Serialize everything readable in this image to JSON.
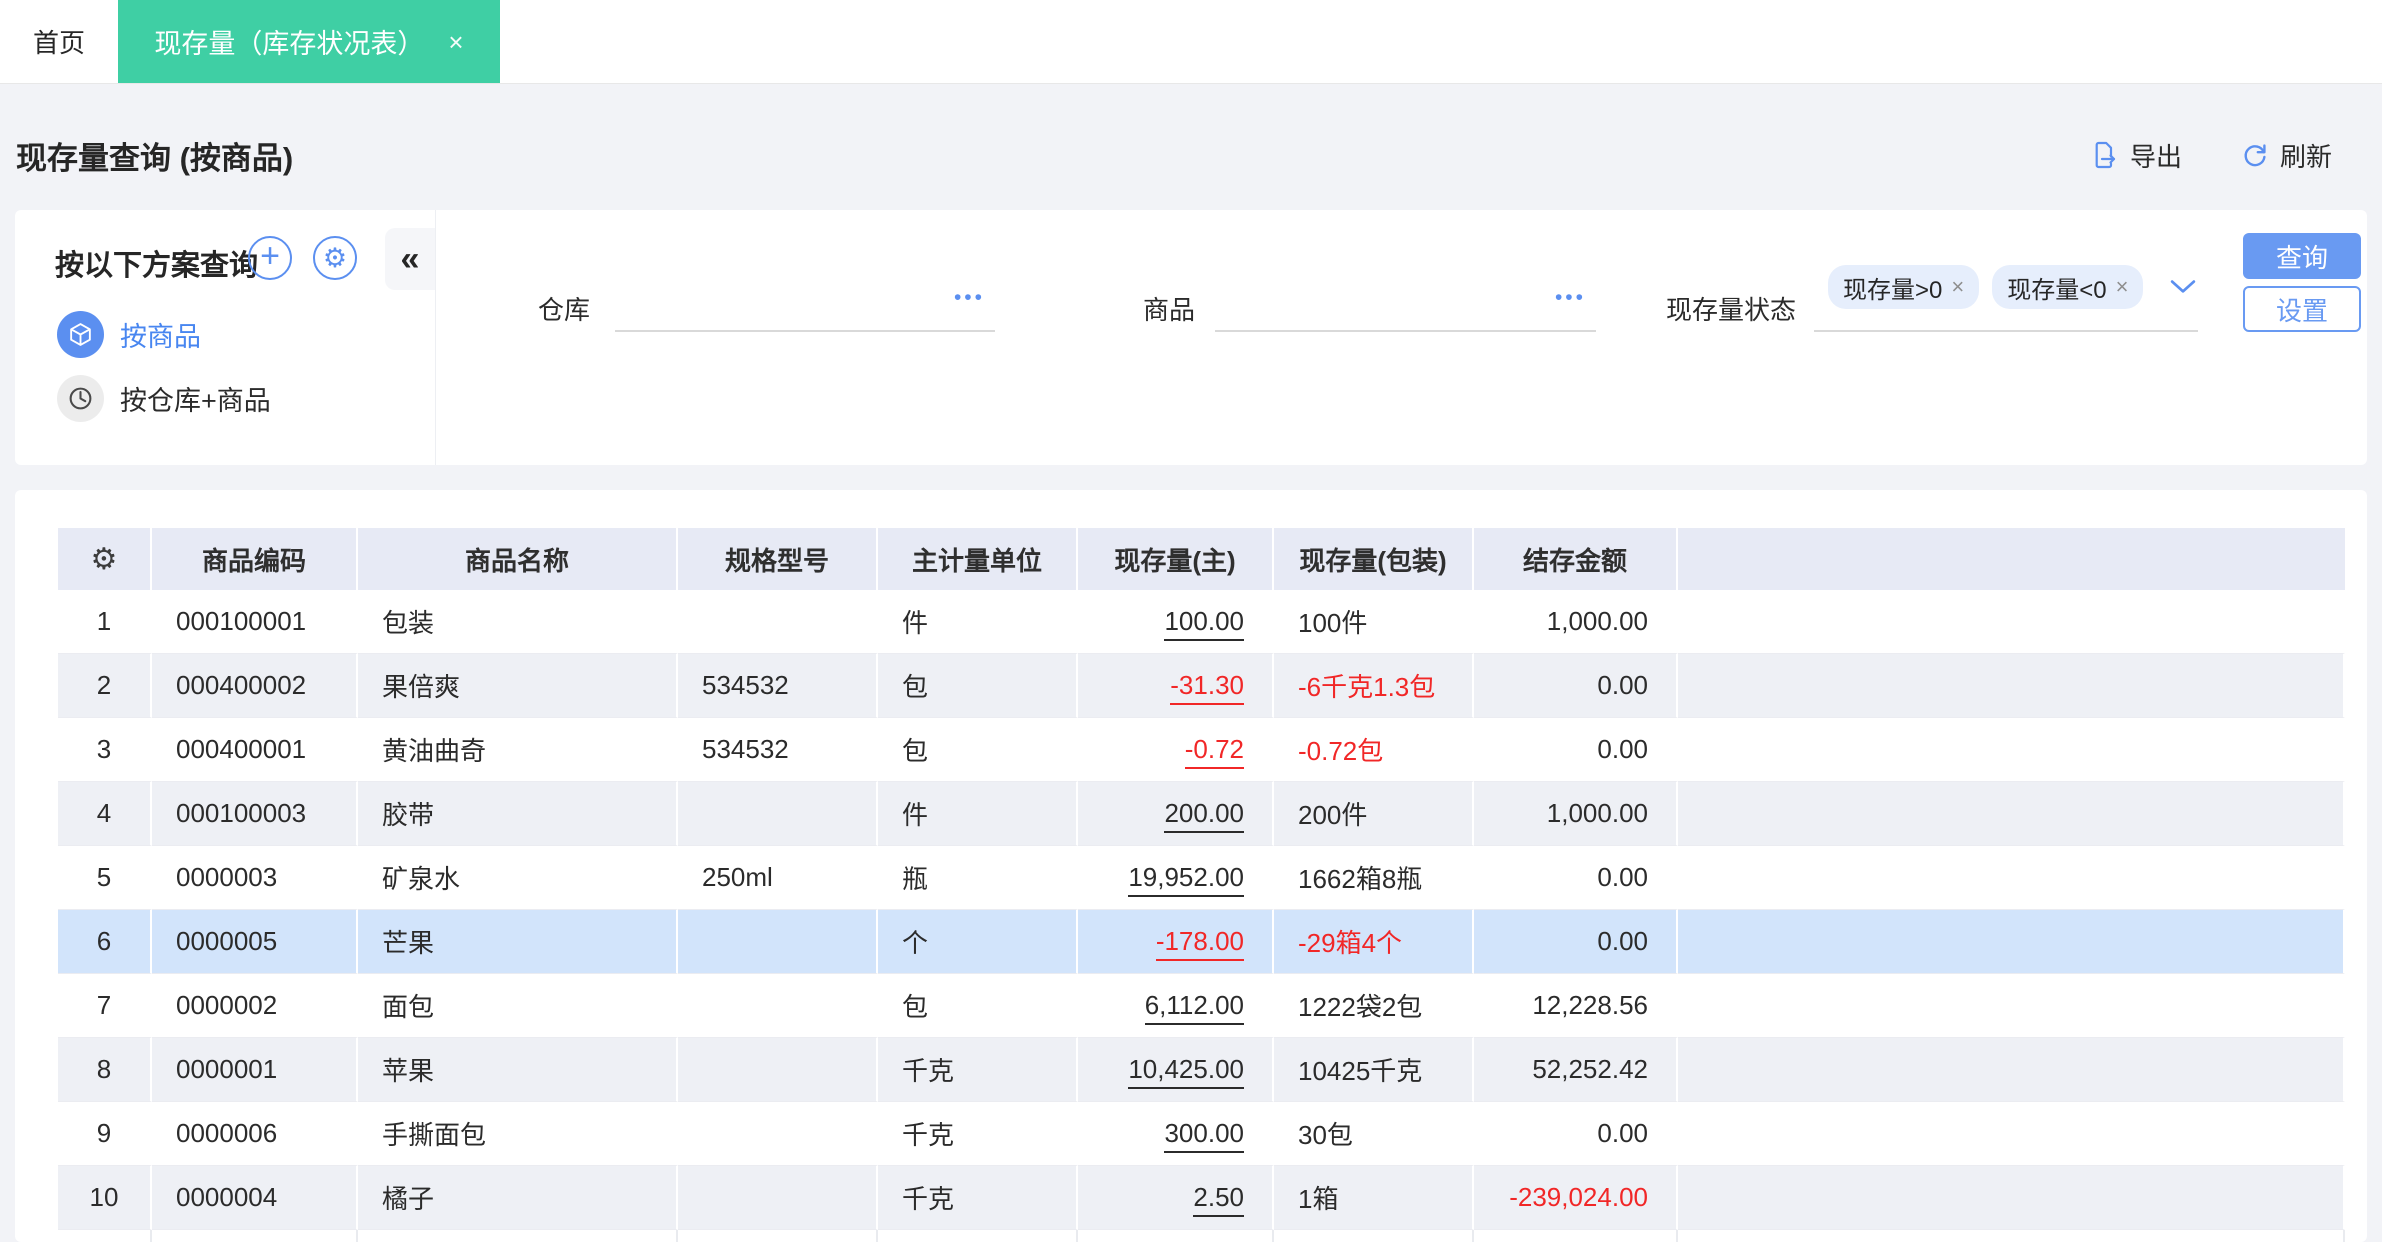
{
  "tabs": {
    "home": "首页",
    "active_label": "现存量（库存状况表）"
  },
  "header": {
    "title": "现存量查询 (按商品)",
    "export_label": "导出",
    "refresh_label": "刷新"
  },
  "scheme_panel": {
    "title": "按以下方案查询",
    "items": [
      {
        "label": "按商品",
        "active": true
      },
      {
        "label": "按仓库+商品",
        "active": false
      }
    ]
  },
  "filters": {
    "warehouse_label": "仓库",
    "product_label": "商品",
    "status_label": "现存量状态",
    "status_tags": [
      {
        "text": "现存量>0"
      },
      {
        "text": "现存量<0"
      }
    ],
    "query_button": "查询",
    "settings_button": "设置"
  },
  "icons": {
    "close": "×",
    "plus": "+",
    "gear": "⚙",
    "collapse": "«",
    "ellipsis": "•••"
  },
  "table": {
    "columns": [
      "商品编码",
      "商品名称",
      "规格型号",
      "主计量单位",
      "现存量(主)",
      "现存量(包装)",
      "结存金额"
    ],
    "selected_row_number": 6,
    "rows": [
      {
        "no": "1",
        "code": "000100001",
        "name": "包装",
        "spec": "",
        "unit": "件",
        "qty_main": "100.00",
        "qty_pkg": "100件",
        "amount": "1,000.00"
      },
      {
        "no": "2",
        "code": "000400002",
        "name": "果倍爽",
        "spec": "534532",
        "unit": "包",
        "qty_main": "-31.30",
        "qty_pkg": "-6千克1.3包",
        "amount": "0.00"
      },
      {
        "no": "3",
        "code": "000400001",
        "name": "黄油曲奇",
        "spec": "534532",
        "unit": "包",
        "qty_main": "-0.72",
        "qty_pkg": "-0.72包",
        "amount": "0.00"
      },
      {
        "no": "4",
        "code": "000100003",
        "name": "胶带",
        "spec": "",
        "unit": "件",
        "qty_main": "200.00",
        "qty_pkg": "200件",
        "amount": "1,000.00"
      },
      {
        "no": "5",
        "code": "0000003",
        "name": "矿泉水",
        "spec": "250ml",
        "unit": "瓶",
        "qty_main": "19,952.00",
        "qty_pkg": "1662箱8瓶",
        "amount": "0.00"
      },
      {
        "no": "6",
        "code": "0000005",
        "name": "芒果",
        "spec": "",
        "unit": "个",
        "qty_main": "-178.00",
        "qty_pkg": "-29箱4个",
        "amount": "0.00"
      },
      {
        "no": "7",
        "code": "0000002",
        "name": "面包",
        "spec": "",
        "unit": "包",
        "qty_main": "6,112.00",
        "qty_pkg": "1222袋2包",
        "amount": "12,228.56"
      },
      {
        "no": "8",
        "code": "0000001",
        "name": "苹果",
        "spec": "",
        "unit": "千克",
        "qty_main": "10,425.00",
        "qty_pkg": "10425千克",
        "amount": "52,252.42"
      },
      {
        "no": "9",
        "code": "0000006",
        "name": "手撕面包",
        "spec": "",
        "unit": "千克",
        "qty_main": "300.00",
        "qty_pkg": "30包",
        "amount": "0.00"
      },
      {
        "no": "10",
        "code": "0000004",
        "name": "橘子",
        "spec": "",
        "unit": "千克",
        "qty_main": "2.50",
        "qty_pkg": "1箱",
        "amount": "-239,024.00"
      }
    ]
  },
  "colors": {
    "page_bg": "#f2f3f7",
    "accent_green": "#3fcfa4",
    "accent_blue": "#5b8ff0",
    "button_blue": "#699af2",
    "link_blue": "#4886f0",
    "negative_red": "#f12727",
    "header_row": "#e7eaf5",
    "zebra_row": "#eef0f5",
    "selected_row": "#d2e4fb"
  }
}
